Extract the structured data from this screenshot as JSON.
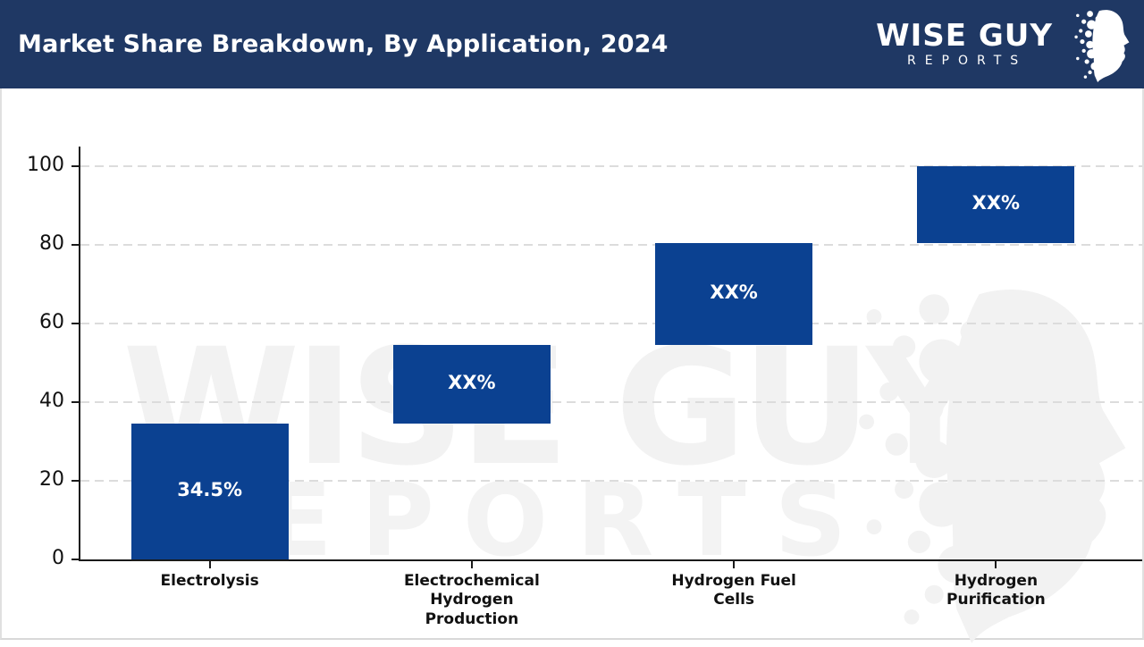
{
  "header": {
    "title": "Market Share Breakdown, By Application, 2024",
    "logo": {
      "line1": "WISE GUY",
      "line2": "REPORTS"
    }
  },
  "watermark": {
    "line1": "WISE GUY",
    "line2": "REPORTS"
  },
  "colors": {
    "header_bg": "#1f3864",
    "bar_blue": "#0b4191",
    "watermark_gray": "#f2f2f2",
    "grid_gray": "#dcdcdc",
    "axis_black": "#1a1a1a"
  },
  "chart_data": {
    "type": "bar",
    "subtype": "waterfall",
    "title": "Market Share Breakdown, By Application, 2024",
    "categories": [
      "Electrolysis",
      "Electrochemical Hydrogen Production",
      "Hydrogen Fuel Cells",
      "Hydrogen Purification"
    ],
    "categories_display": [
      "Electrolysis",
      "Electrochemical\nHydrogen\nProduction",
      "Hydrogen Fuel\nCells",
      "Hydrogen\nPurification"
    ],
    "segments": [
      {
        "category": "Electrolysis",
        "start": 0,
        "end": 34.5,
        "label": "34.5%"
      },
      {
        "category": "Electrochemical Hydrogen Production",
        "start": 34.5,
        "end": 54.5,
        "label": "XX%"
      },
      {
        "category": "Hydrogen Fuel Cells",
        "start": 54.5,
        "end": 80.5,
        "label": "XX%"
      },
      {
        "category": "Hydrogen Purification",
        "start": 80.5,
        "end": 100,
        "label": "XX%"
      }
    ],
    "xlabel": "",
    "ylabel": "",
    "yticks": [
      0,
      20,
      40,
      60,
      80,
      100
    ],
    "ylim": [
      0,
      105
    ],
    "grid": "horizontal-dashed",
    "legend": "none",
    "bar_color": "#0b4191",
    "bar_label_color": "#ffffff"
  }
}
